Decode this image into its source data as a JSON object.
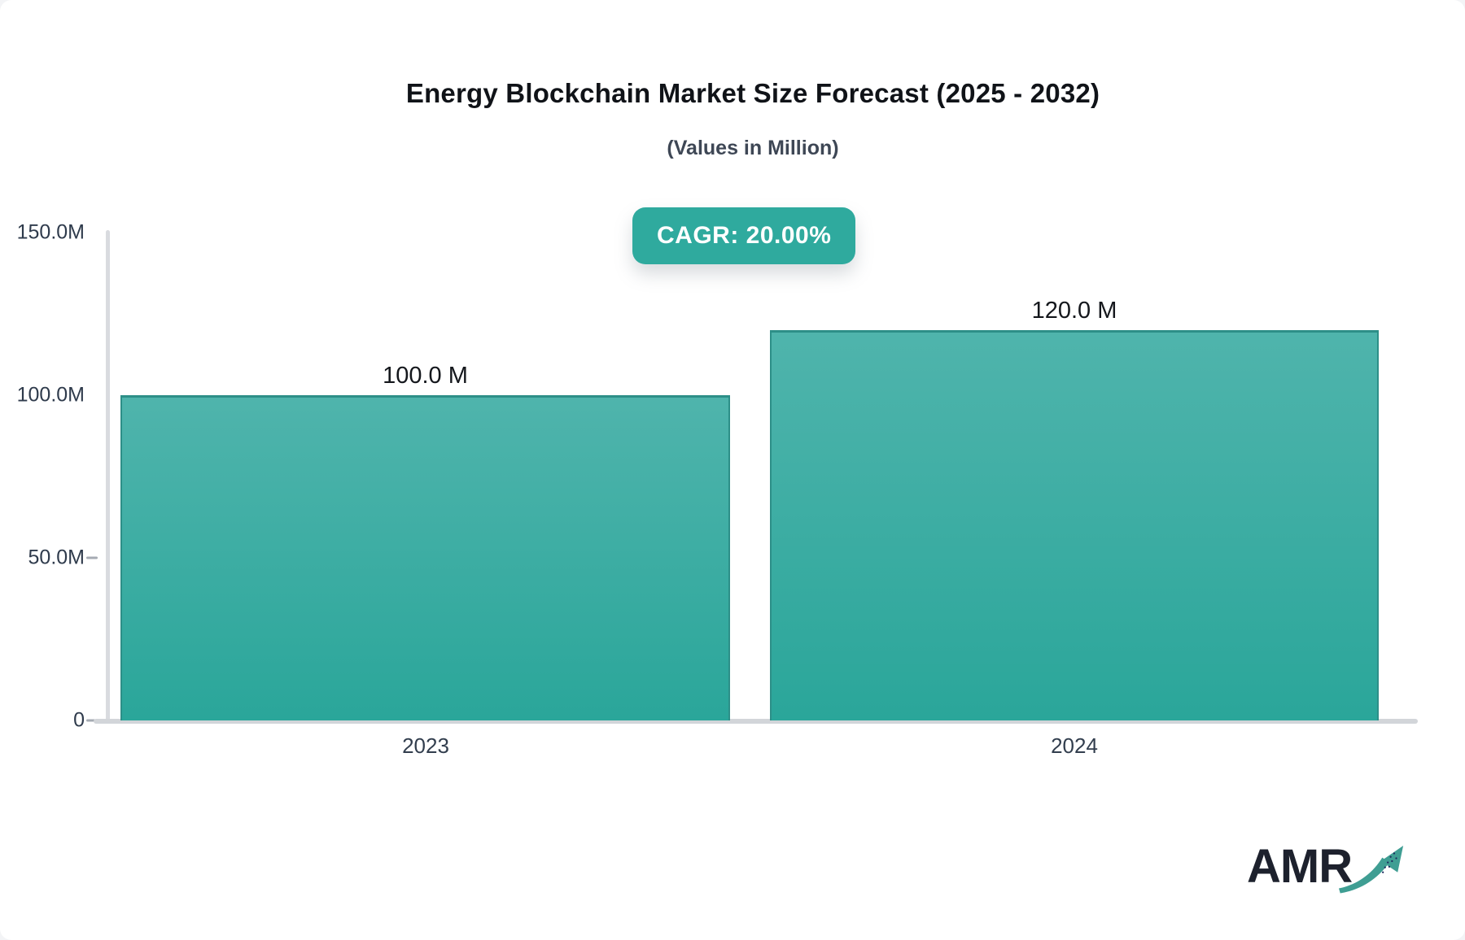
{
  "chart_data": {
    "type": "bar",
    "title": "Energy Blockchain Market Size Forecast (2025 - 2032)",
    "subtitle": "(Values in Million)",
    "cagr_label": "CAGR: 20.00%",
    "cagr_percent": 20.0,
    "unit": "Million",
    "categories": [
      "2023",
      "2024"
    ],
    "values": [
      100.0,
      120.0
    ],
    "value_labels": [
      "100.0 M",
      "120.0 M"
    ],
    "ylim": [
      0,
      150
    ],
    "ytick_labels": [
      "150.0M",
      "100.0M",
      "50.0M",
      "0"
    ],
    "grid": false,
    "legend_position": "none",
    "colors": {
      "bar_gradient_top": "#4fb4ac",
      "bar_gradient_bottom": "#2aa69a",
      "bar_border": "#2d8f88",
      "badge_background": "#2faa9e",
      "badge_text": "#ffffff",
      "axis_line": "#d6d9dd",
      "tick_label": "#2f3b4c",
      "title_text": "#101318"
    }
  },
  "footer": {
    "logo_text": "AMR"
  }
}
